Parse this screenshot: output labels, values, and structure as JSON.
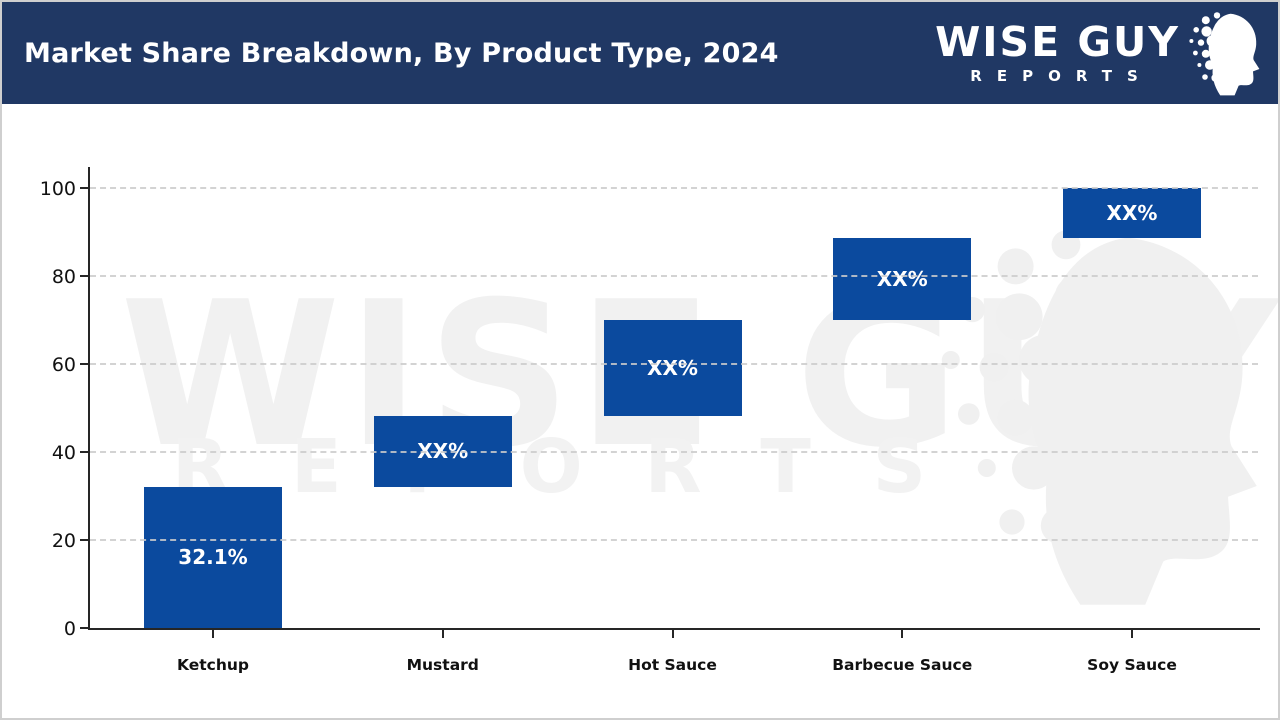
{
  "header": {
    "title": "Market Share Breakdown, By Product Type, 2024"
  },
  "logo": {
    "line1": "WISE GUY",
    "line2": "REPORTS"
  },
  "watermark": {
    "line1": "WISE GUY",
    "line2": "REPORTS"
  },
  "colors": {
    "header_bg": "#203864",
    "bar": "#0b4a9e",
    "bar_label": "#ffffff",
    "gridline": "#cccccc",
    "watermark": "#f1f1f1"
  },
  "chart_data": {
    "type": "bar",
    "subtype": "waterfall",
    "title": "Market Share Breakdown, By Product Type, 2024",
    "xlabel": "",
    "ylabel": "",
    "categories": [
      "Ketchup",
      "Mustard",
      "Hot Sauce",
      "Barbecue Sauce",
      "Soy Sauce"
    ],
    "bars": [
      {
        "category": "Ketchup",
        "start": 0,
        "end": 32.1,
        "label": "32.1%"
      },
      {
        "category": "Mustard",
        "start": 32.1,
        "end": 48.2,
        "label": "XX%"
      },
      {
        "category": "Hot Sauce",
        "start": 48.2,
        "end": 70.0,
        "label": "XX%"
      },
      {
        "category": "Barbecue Sauce",
        "start": 70.0,
        "end": 88.6,
        "label": "XX%"
      },
      {
        "category": "Soy Sauce",
        "start": 88.6,
        "end": 100.0,
        "label": "XX%"
      }
    ],
    "y_ticks": [
      0,
      20,
      40,
      60,
      80,
      100
    ],
    "ylim": [
      0,
      104.8
    ],
    "grid": "horizontal dashed, drawn above bars",
    "legend": "none"
  }
}
